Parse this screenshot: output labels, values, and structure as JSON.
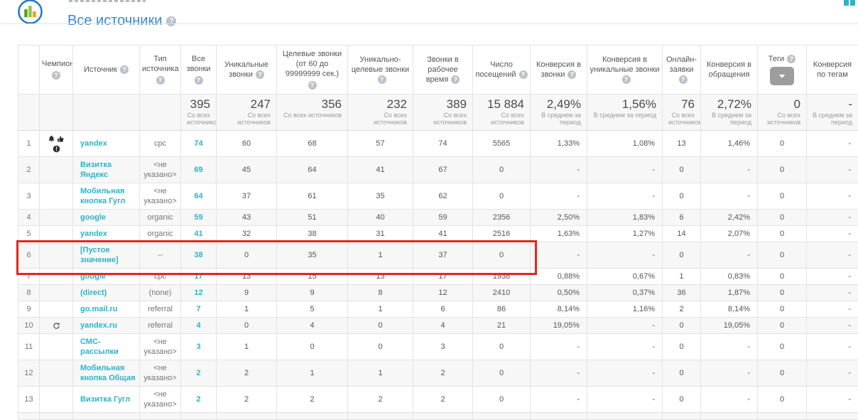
{
  "header": {
    "title": "Все источники",
    "help_glyph": "?"
  },
  "icons": {
    "help": "?"
  },
  "colors": {
    "accent_teal": "#2bb4c9",
    "title_blue": "#3a87d8",
    "highlight_red": "#e2281c"
  },
  "table": {
    "columns": [
      {
        "id": "num",
        "label": "",
        "help": false
      },
      {
        "id": "champions",
        "label": "Чемпионы",
        "help": true,
        "help_pos": "below"
      },
      {
        "id": "source",
        "label": "Источник",
        "help": true,
        "help_pos": "inline"
      },
      {
        "id": "type",
        "label": "Тип источника",
        "help": true,
        "help_pos": "below"
      },
      {
        "id": "all_calls",
        "label": "Все звонки",
        "help": true,
        "help_pos": "below"
      },
      {
        "id": "unique_calls",
        "label": "Уникальные звонки",
        "help": true,
        "help_pos": "inline"
      },
      {
        "id": "target_calls",
        "label": "Целевые звонки (от 60 до 99999999 сек.)",
        "help": true,
        "help_pos": "below"
      },
      {
        "id": "unique_target_calls",
        "label": "Уникально-целевые звонки",
        "help": true,
        "help_pos": "inline"
      },
      {
        "id": "work_time_calls",
        "label": "Звонки в рабочее время",
        "help": true,
        "help_pos": "inline"
      },
      {
        "id": "visits",
        "label": "Число посещений",
        "help": true,
        "help_pos": "inline"
      },
      {
        "id": "conv_calls",
        "label": "Конверсия в звонки",
        "help": true,
        "help_pos": "inline"
      },
      {
        "id": "conv_unique_calls",
        "label": "Конверсия в уникальные звонки",
        "help": true,
        "help_pos": "inline"
      },
      {
        "id": "online_leads",
        "label": "Онлайн-заявки",
        "help": true,
        "help_pos": "inline"
      },
      {
        "id": "conv_leads",
        "label": "Конверсия в обращения",
        "help": false
      },
      {
        "id": "tags",
        "label": "Теги",
        "help": true,
        "help_pos": "inline",
        "button": true
      },
      {
        "id": "conv_tags",
        "label": "Конверсия по тегам",
        "help": false
      }
    ],
    "totals": {
      "values": [
        "395",
        "247",
        "356",
        "232",
        "389",
        "15 884",
        "2,49%",
        "1,56%",
        "76",
        "2,72%",
        "0",
        "-"
      ],
      "captions": [
        "Со всех источников",
        "Со всех источников",
        "Со всех источников",
        "Со всех источников",
        "Со всех источников",
        "Со всех источников",
        "В среднем за период",
        "В среднем за период",
        "Со всех источников",
        "В среднем за период",
        "Со всех источников",
        "В среднем за период"
      ]
    },
    "rows": [
      {
        "num": "1",
        "champions": [
          "bell",
          "thumbs-up",
          "alert"
        ],
        "source": "yandex",
        "type": "cpc",
        "metrics": [
          "74",
          "60",
          "68",
          "57",
          "74",
          "5565",
          "1,33%",
          "1,08%",
          "13",
          "1,46%",
          "0",
          "-"
        ],
        "highlighted": false
      },
      {
        "num": "2",
        "champions": [],
        "source": "Визитка Яндекс",
        "type": "<не указано>",
        "metrics": [
          "69",
          "45",
          "64",
          "41",
          "67",
          "0",
          "-",
          "-",
          "0",
          "-",
          "0",
          "-"
        ],
        "highlighted": false
      },
      {
        "num": "3",
        "champions": [],
        "source": "Мобильная кнопка Гугл",
        "type": "<не указано>",
        "metrics": [
          "64",
          "37",
          "61",
          "35",
          "62",
          "0",
          "-",
          "-",
          "0",
          "-",
          "0",
          "-"
        ],
        "highlighted": false
      },
      {
        "num": "4",
        "champions": [],
        "source": "google",
        "type": "organic",
        "metrics": [
          "59",
          "43",
          "51",
          "40",
          "59",
          "2356",
          "2,50%",
          "1,83%",
          "6",
          "2,42%",
          "0",
          "-"
        ],
        "highlighted": false
      },
      {
        "num": "5",
        "champions": [],
        "source": "yandex",
        "type": "organic",
        "metrics": [
          "41",
          "32",
          "38",
          "31",
          "41",
          "2516",
          "1,63%",
          "1,27%",
          "14",
          "2,07%",
          "0",
          "-"
        ],
        "highlighted": false
      },
      {
        "num": "6",
        "champions": [],
        "source": "[Пустое значение]",
        "type": "--",
        "metrics": [
          "38",
          "0",
          "35",
          "1",
          "37",
          "0",
          "-",
          "-",
          "0",
          "-",
          "0",
          "-"
        ],
        "highlighted": true
      },
      {
        "num": "7",
        "champions": [],
        "source": "google",
        "type": "cpc",
        "metrics": [
          "17",
          "13",
          "15",
          "13",
          "17",
          "1938",
          "0,88%",
          "0,67%",
          "1",
          "0,83%",
          "0",
          "-"
        ],
        "highlighted": false
      },
      {
        "num": "8",
        "champions": [],
        "source": "(direct)",
        "type": "(none)",
        "metrics": [
          "12",
          "9",
          "9",
          "8",
          "12",
          "2410",
          "0,50%",
          "0,37%",
          "36",
          "1,87%",
          "0",
          "-"
        ],
        "highlighted": false
      },
      {
        "num": "9",
        "champions": [],
        "source": "go.mail.ru",
        "type": "referral",
        "metrics": [
          "7",
          "1",
          "5",
          "1",
          "6",
          "86",
          "8,14%",
          "1,16%",
          "2",
          "8,14%",
          "0",
          "-"
        ],
        "highlighted": false
      },
      {
        "num": "10",
        "champions": [
          "refresh"
        ],
        "source": "yandex.ru",
        "type": "referral",
        "metrics": [
          "4",
          "0",
          "4",
          "0",
          "4",
          "21",
          "19,05%",
          "-",
          "0",
          "19,05%",
          "0",
          "-"
        ],
        "highlighted": false
      },
      {
        "num": "11",
        "champions": [],
        "source": "СМС-рассылки",
        "type": "<не указано>",
        "metrics": [
          "3",
          "1",
          "0",
          "0",
          "3",
          "0",
          "-",
          "-",
          "0",
          "-",
          "0",
          "-"
        ],
        "highlighted": false
      },
      {
        "num": "12",
        "champions": [],
        "source": "Мобильная кнопка Общая",
        "type": "<не указано>",
        "metrics": [
          "2",
          "2",
          "1",
          "1",
          "2",
          "0",
          "-",
          "-",
          "0",
          "-",
          "0",
          "-"
        ],
        "highlighted": false
      },
      {
        "num": "13",
        "champions": [],
        "source": "Визитка Гугл",
        "type": "<не указано>",
        "metrics": [
          "2",
          "2",
          "2",
          "2",
          "2",
          "0",
          "-",
          "-",
          "0",
          "-",
          "0",
          "-"
        ],
        "highlighted": false
      }
    ]
  }
}
